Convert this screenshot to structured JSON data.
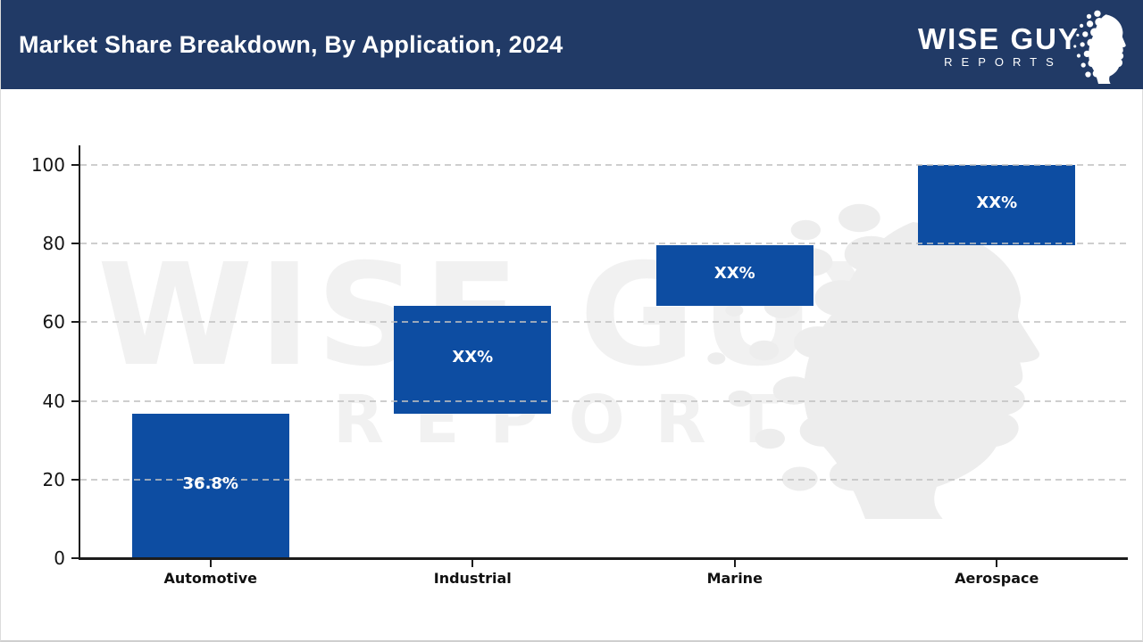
{
  "header": {
    "title": "Market Share Breakdown, By Application, 2024",
    "logo": {
      "line1": "WISE GUY",
      "line2": "REPORTS"
    }
  },
  "watermark": {
    "line1": "WISE GUY",
    "line2": "REPORTS"
  },
  "colors": {
    "header_bg": "#213a66",
    "bar": "#0d4da2",
    "axis": "#1c1c1c",
    "gridline": "#dcdcdc",
    "watermark": "#f1f1f1",
    "bar_label": "#ffffff"
  },
  "chart_data": {
    "type": "bar",
    "subtype": "floating-waterfall",
    "title": "Market Share Breakdown, By Application, 2024",
    "categories": [
      "Automotive",
      "Industrial",
      "Marine",
      "Aerospace"
    ],
    "series": [
      {
        "name": "Market share (%)",
        "segments": [
          {
            "category": "Automotive",
            "start": 0,
            "end": 36.8,
            "label": "36.8%"
          },
          {
            "category": "Industrial",
            "start": 36.8,
            "end": 64.2,
            "label": "XX%"
          },
          {
            "category": "Marine",
            "start": 64.2,
            "end": 79.7,
            "label": "XX%"
          },
          {
            "category": "Aerospace",
            "start": 79.7,
            "end": 100,
            "label": "XX%"
          }
        ]
      }
    ],
    "ylim": [
      0,
      100
    ],
    "yticks": [
      0,
      20,
      40,
      60,
      80,
      100
    ],
    "grid": "horizontal-dashed",
    "legend": false
  }
}
